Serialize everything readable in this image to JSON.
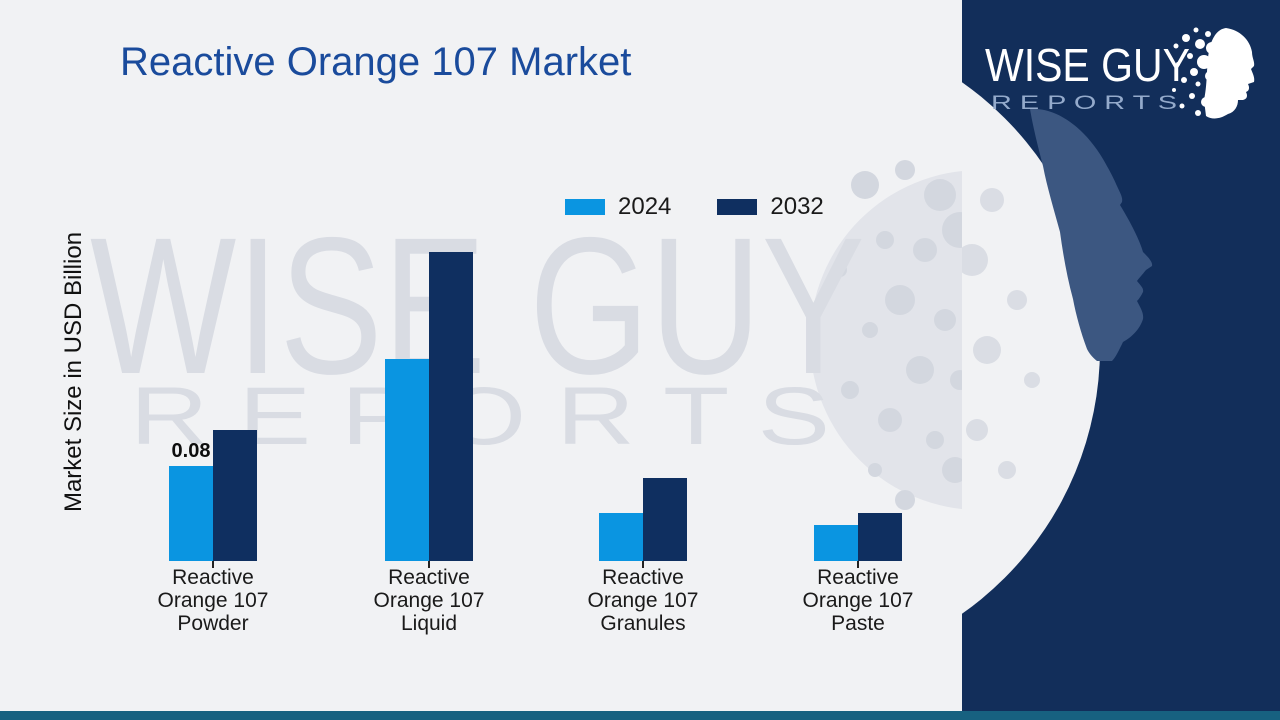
{
  "title": "Reactive Orange 107 Market",
  "y_axis": {
    "label": "Market Size in USD Billion"
  },
  "legend": {
    "items": [
      {
        "label": "2024",
        "color": "#0a95e1"
      },
      {
        "label": "2032",
        "color": "#0f2f60"
      }
    ]
  },
  "watermark": {
    "line1": "WISE GUY",
    "line2": "R E P O R T S"
  },
  "brand_panel": {
    "logo_line1": "WISE GUY",
    "logo_line2": "R E P O R T S",
    "background": "#122e5a",
    "accent_strip_color": "#176180",
    "face_color": "#3c5781"
  },
  "colors": {
    "page_background": "#f1f2f4",
    "title": "#1a4b9c",
    "series_2024": "#0a95e1",
    "series_2032": "#0f2f60",
    "watermark_gray": "#d9dce3"
  },
  "chart_data": {
    "type": "bar",
    "title": "Reactive Orange 107 Market",
    "ylabel": "Market Size in USD Billion",
    "unit": "USD Billion",
    "categories": [
      "Reactive Orange 107 Powder",
      "Reactive Orange 107 Liquid",
      "Reactive Orange 107 Granules",
      "Reactive Orange 107 Paste"
    ],
    "series": [
      {
        "name": "2024",
        "color": "#0a95e1",
        "values": [
          0.08,
          0.17,
          0.04,
          0.03
        ]
      },
      {
        "name": "2032",
        "color": "#0f2f60",
        "values": [
          0.11,
          0.26,
          0.07,
          0.04
        ]
      }
    ],
    "bar_value_labels": [
      {
        "series": "2024",
        "category": "Reactive Orange 107 Powder",
        "text": "0.08"
      }
    ],
    "ylim": [
      0,
      0.3
    ],
    "grid": false,
    "legend_position": "top-right"
  }
}
